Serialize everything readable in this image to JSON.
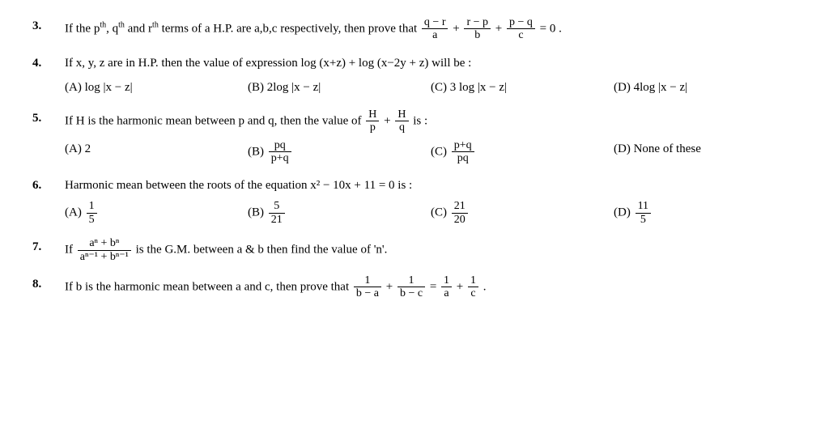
{
  "questions": [
    {
      "num": "3.",
      "text_pre": "If the p",
      "sup1": "th",
      "text_mid1": ", q",
      "sup2": "th",
      "text_mid2": " and r",
      "sup3": "th",
      "text_mid3": " terms of a H.P. are a,b,c respectively, then prove that ",
      "frac1_num": "q − r",
      "frac1_den": "a",
      "plus1": " + ",
      "frac2_num": "r − p",
      "frac2_den": "b",
      "plus2": " + ",
      "frac3_num": "p − q",
      "frac3_den": "c",
      "tail": " = 0 ."
    },
    {
      "num": "4.",
      "text": "If x, y, z are in H.P. then the value of expression log (x+z) + log (x−2y + z) will be :",
      "opts": {
        "a": "(A) log |x − z|",
        "b": "(B) 2log |x − z|",
        "c": "(C) 3 log |x − z|",
        "d": "(D) 4log |x − z|"
      }
    },
    {
      "num": "5.",
      "text_pre": "If H is the harmonic mean between p and q, then the value of ",
      "f1_num": "H",
      "f1_den": "p",
      "plus": " + ",
      "f2_num": "H",
      "f2_den": "q",
      "text_post": " is :",
      "opts": {
        "a": "(A) 2",
        "b_pre": "(B) ",
        "b_num": "pq",
        "b_den": "p+q",
        "c_pre": "(C) ",
        "c_num": "p+q",
        "c_den": "pq",
        "d": "(D) None of these"
      }
    },
    {
      "num": "6.",
      "text": "Harmonic mean between the roots of the equation x² − 10x + 11 = 0 is :",
      "opts": {
        "a_pre": "(A) ",
        "a_num": "1",
        "a_den": "5",
        "b_pre": "(B) ",
        "b_num": "5",
        "b_den": "21",
        "c_pre": "(C) ",
        "c_num": "21",
        "c_den": "20",
        "d_pre": "(D) ",
        "d_num": "11",
        "d_den": "5"
      }
    },
    {
      "num": "7.",
      "text_pre": "If ",
      "f_num": "aⁿ + bⁿ",
      "f_den": "aⁿ⁻¹ + bⁿ⁻¹",
      "text_post": " is the G.M. between a & b then find the value of 'n'."
    },
    {
      "num": "8.",
      "text_pre": "If b is the harmonic mean between a and c, then prove that ",
      "f1_num": "1",
      "f1_den": "b − a",
      "plus1": " + ",
      "f2_num": "1",
      "f2_den": "b − c",
      "eq": " = ",
      "f3_num": "1",
      "f3_den": "a",
      "plus2": " + ",
      "f4_num": "1",
      "f4_den": "c",
      "tail": " ."
    }
  ]
}
